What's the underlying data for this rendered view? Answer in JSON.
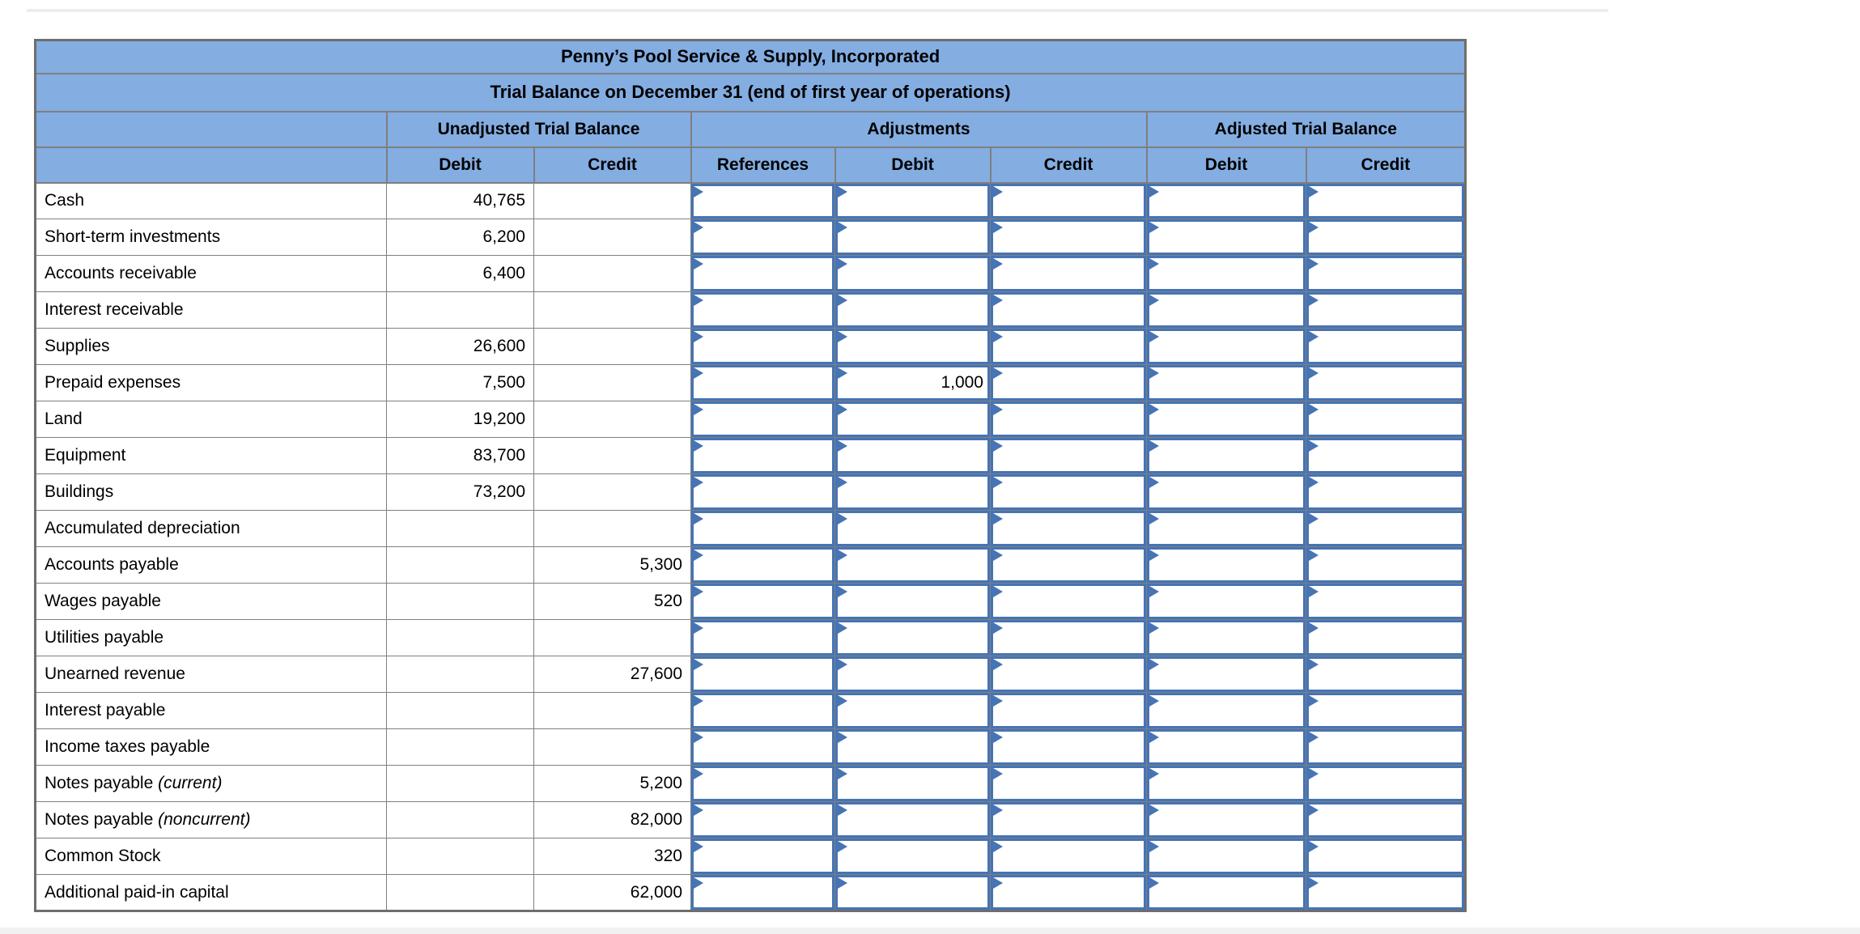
{
  "page": {
    "top_divider_color": "#ededed",
    "bottom_strip_color": "#f1f1f1"
  },
  "table": {
    "title": "Penny’s Pool Service & Supply, Incorporated",
    "subtitle": "Trial Balance on December 31 (end of first year of operations)",
    "colors": {
      "header_fill": "#84ade1",
      "grid_line": "#7f7f7f",
      "outer_border": "#6e6e6e",
      "input_border": "#4674b4",
      "text": "#000000"
    },
    "column_groups": [
      {
        "label": "Unadjusted Trial Balance"
      },
      {
        "label": "Adjustments"
      },
      {
        "label": "Adjusted Trial Balance"
      }
    ],
    "sub_headers": {
      "utb_debit": "Debit",
      "utb_credit": "Credit",
      "references": "References",
      "adj_debit": "Debit",
      "adj_credit": "Credit",
      "atb_debit": "Debit",
      "atb_credit": "Credit"
    },
    "rows": [
      {
        "account": "Cash",
        "utb_debit": "40,765",
        "utb_credit": "",
        "ref": "",
        "adj_debit": "",
        "adj_credit": "",
        "atb_debit": "",
        "atb_credit": ""
      },
      {
        "account": "Short-term investments",
        "utb_debit": "6,200",
        "utb_credit": "",
        "ref": "",
        "adj_debit": "",
        "adj_credit": "",
        "atb_debit": "",
        "atb_credit": ""
      },
      {
        "account": "Accounts receivable",
        "utb_debit": "6,400",
        "utb_credit": "",
        "ref": "",
        "adj_debit": "",
        "adj_credit": "",
        "atb_debit": "",
        "atb_credit": ""
      },
      {
        "account": "Interest receivable",
        "utb_debit": "",
        "utb_credit": "",
        "ref": "",
        "adj_debit": "",
        "adj_credit": "",
        "atb_debit": "",
        "atb_credit": ""
      },
      {
        "account": "Supplies",
        "utb_debit": "26,600",
        "utb_credit": "",
        "ref": "",
        "adj_debit": "",
        "adj_credit": "",
        "atb_debit": "",
        "atb_credit": ""
      },
      {
        "account": "Prepaid expenses",
        "utb_debit": "7,500",
        "utb_credit": "",
        "ref": "",
        "adj_debit": "1,000",
        "adj_credit": "",
        "atb_debit": "",
        "atb_credit": ""
      },
      {
        "account": "Land",
        "utb_debit": "19,200",
        "utb_credit": "",
        "ref": "",
        "adj_debit": "",
        "adj_credit": "",
        "atb_debit": "",
        "atb_credit": ""
      },
      {
        "account": "Equipment",
        "utb_debit": "83,700",
        "utb_credit": "",
        "ref": "",
        "adj_debit": "",
        "adj_credit": "",
        "atb_debit": "",
        "atb_credit": ""
      },
      {
        "account": "Buildings",
        "utb_debit": "73,200",
        "utb_credit": "",
        "ref": "",
        "adj_debit": "",
        "adj_credit": "",
        "atb_debit": "",
        "atb_credit": ""
      },
      {
        "account": "Accumulated depreciation",
        "utb_debit": "",
        "utb_credit": "",
        "ref": "",
        "adj_debit": "",
        "adj_credit": "",
        "atb_debit": "",
        "atb_credit": ""
      },
      {
        "account": "Accounts payable",
        "utb_debit": "",
        "utb_credit": "5,300",
        "ref": "",
        "adj_debit": "",
        "adj_credit": "",
        "atb_debit": "",
        "atb_credit": ""
      },
      {
        "account": "Wages payable",
        "utb_debit": "",
        "utb_credit": "520",
        "ref": "",
        "adj_debit": "",
        "adj_credit": "",
        "atb_debit": "",
        "atb_credit": ""
      },
      {
        "account": "Utilities payable",
        "utb_debit": "",
        "utb_credit": "",
        "ref": "",
        "adj_debit": "",
        "adj_credit": "",
        "atb_debit": "",
        "atb_credit": ""
      },
      {
        "account": "Unearned revenue",
        "utb_debit": "",
        "utb_credit": "27,600",
        "ref": "",
        "adj_debit": "",
        "adj_credit": "",
        "atb_debit": "",
        "atb_credit": ""
      },
      {
        "account": "Interest payable",
        "utb_debit": "",
        "utb_credit": "",
        "ref": "",
        "adj_debit": "",
        "adj_credit": "",
        "atb_debit": "",
        "atb_credit": ""
      },
      {
        "account": "Income taxes payable",
        "utb_debit": "",
        "utb_credit": "",
        "ref": "",
        "adj_debit": "",
        "adj_credit": "",
        "atb_debit": "",
        "atb_credit": ""
      },
      {
        "account": "Notes payable (current)",
        "italic": "(current)",
        "utb_debit": "",
        "utb_credit": "5,200",
        "ref": "",
        "adj_debit": "",
        "adj_credit": "",
        "atb_debit": "",
        "atb_credit": ""
      },
      {
        "account": "Notes payable (noncurrent)",
        "italic": "(noncurrent)",
        "utb_debit": "",
        "utb_credit": "82,000",
        "ref": "",
        "adj_debit": "",
        "adj_credit": "",
        "atb_debit": "",
        "atb_credit": ""
      },
      {
        "account": "Common Stock",
        "utb_debit": "",
        "utb_credit": "320",
        "ref": "",
        "adj_debit": "",
        "adj_credit": "",
        "atb_debit": "",
        "atb_credit": ""
      },
      {
        "account": "Additional paid-in capital",
        "utb_debit": "",
        "utb_credit": "62,000",
        "ref": "",
        "adj_debit": "",
        "adj_credit": "",
        "atb_debit": "",
        "atb_credit": ""
      }
    ]
  }
}
